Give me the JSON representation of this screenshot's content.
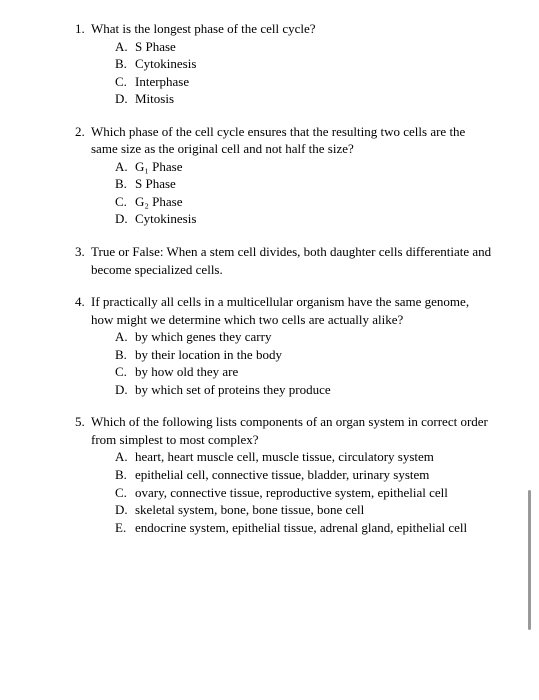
{
  "questions": [
    {
      "num": "1.",
      "prompt": "What is the longest phase of the cell cycle?",
      "options": [
        {
          "letter": "A.",
          "text": "S Phase"
        },
        {
          "letter": "B.",
          "text": "Cytokinesis"
        },
        {
          "letter": "C.",
          "text": "Interphase"
        },
        {
          "letter": "D.",
          "text": "Mitosis"
        }
      ]
    },
    {
      "num": "2.",
      "prompt": "Which phase of the cell cycle ensures that the resulting two cells are the same size as the original cell and not half the size?",
      "options": [
        {
          "letter": "A.",
          "text": "G₁ Phase"
        },
        {
          "letter": "B.",
          "text": "S Phase"
        },
        {
          "letter": "C.",
          "text": "G₂ Phase"
        },
        {
          "letter": "D.",
          "text": "Cytokinesis"
        }
      ]
    },
    {
      "num": "3.",
      "prompt": "True or False: When a stem cell divides, both daughter cells differentiate and become specialized cells.",
      "options": []
    },
    {
      "num": "4.",
      "prompt": "If practically all cells in a multicellular organism have the same genome, how might we determine which two cells are actually alike?",
      "options": [
        {
          "letter": "A.",
          "text": "by which genes they carry"
        },
        {
          "letter": "B.",
          "text": "by their location in the body"
        },
        {
          "letter": "C.",
          "text": "by how old they are"
        },
        {
          "letter": "D.",
          "text": "by which set of proteins they produce"
        }
      ]
    },
    {
      "num": "5.",
      "prompt": "Which of the following lists components of an organ system in correct order from simplest to most complex?",
      "options": [
        {
          "letter": "A.",
          "text": "heart, heart muscle cell, muscle tissue, circulatory system"
        },
        {
          "letter": "B.",
          "text": "epithelial cell, connective tissue, bladder, urinary system"
        },
        {
          "letter": "C.",
          "text": "ovary, connective tissue, reproductive system, epithelial cell"
        },
        {
          "letter": "D.",
          "text": "skeletal system, bone, bone tissue, bone cell"
        },
        {
          "letter": "E.",
          "text": "endocrine system, epithelial tissue, adrenal gland, epithelial cell"
        }
      ]
    }
  ]
}
